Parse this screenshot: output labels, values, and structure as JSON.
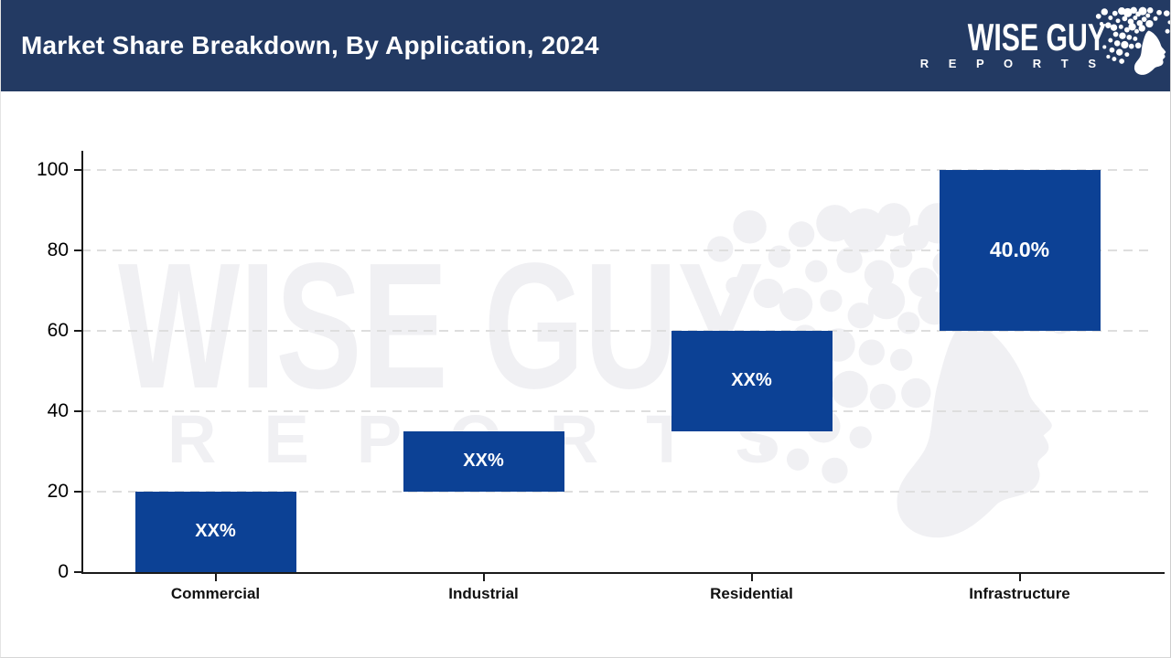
{
  "header": {
    "title": "Market Share Breakdown, By Application, 2024",
    "logo": {
      "line1": "WISE GUY",
      "line2": "R E P O R T S"
    }
  },
  "watermark": {
    "line1": "WISE GUY",
    "line2": "REPORTS"
  },
  "colors": {
    "header_bg": "#233a63",
    "bar": "#0c4195",
    "bar_label": "#ffffff",
    "gridline": "#dedede",
    "watermark": "#f0f0f3"
  },
  "chart_data": {
    "type": "bar",
    "subtype": "waterfall",
    "title": "Market Share Breakdown, By Application, 2024",
    "categories": [
      "Commercial",
      "Industrial",
      "Residential",
      "Infrastructure"
    ],
    "segments": [
      {
        "category": "Commercial",
        "start": 0,
        "end": 20,
        "value_label": "XX%"
      },
      {
        "category": "Industrial",
        "start": 20,
        "end": 35,
        "value_label": "XX%"
      },
      {
        "category": "Residential",
        "start": 35,
        "end": 60,
        "value_label": "XX%"
      },
      {
        "category": "Infrastructure",
        "start": 60,
        "end": 100,
        "value_label": "40.0%"
      }
    ],
    "y_ticks": [
      0,
      20,
      40,
      60,
      80,
      100
    ],
    "ylim": [
      0,
      105
    ],
    "xlabel": "",
    "ylabel": "",
    "grid": "horizontal-dashed",
    "legend": "none"
  }
}
